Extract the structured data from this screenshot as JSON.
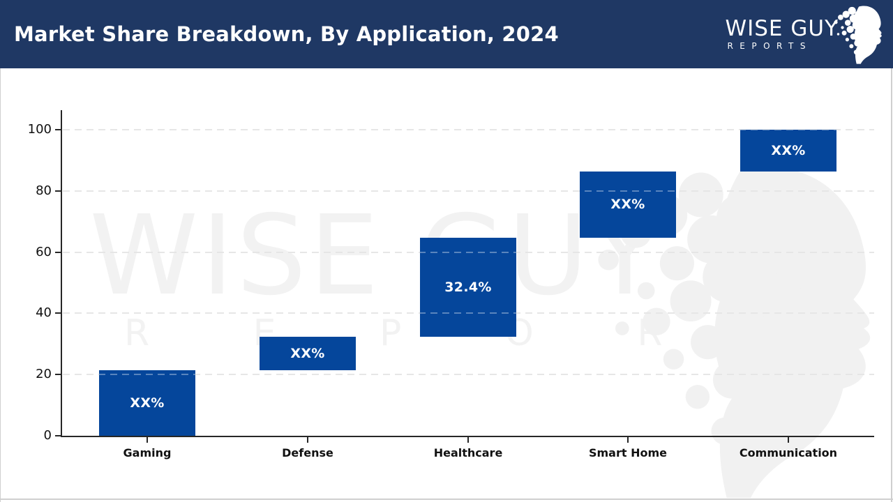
{
  "header": {
    "title": "Market Share Breakdown, By Application, 2024",
    "bg_color": "#1f3864",
    "logo": {
      "line1": "WISE GUY",
      "line2": "REPORTS"
    }
  },
  "watermark": {
    "line1": "WISE GUY",
    "line2": "REPORTS"
  },
  "chart_data": {
    "type": "bar",
    "variant": "floating-waterfall",
    "title": "Market Share Breakdown, By Application, 2024",
    "categories": [
      "Gaming",
      "Defense",
      "Healthcare",
      "Smart Home",
      "Communication"
    ],
    "bars": [
      {
        "category": "Gaming",
        "start": 0,
        "end": 21.5,
        "label": "XX%"
      },
      {
        "category": "Defense",
        "start": 21.5,
        "end": 32.4,
        "label": "XX%"
      },
      {
        "category": "Healthcare",
        "start": 32.4,
        "end": 64.8,
        "label": "32.4%"
      },
      {
        "category": "Smart Home",
        "start": 64.8,
        "end": 86.3,
        "label": "XX%"
      },
      {
        "category": "Communication",
        "start": 86.3,
        "end": 100,
        "label": "XX%"
      }
    ],
    "ylim": [
      0,
      100
    ],
    "yticks": [
      0,
      20,
      40,
      60,
      80,
      100
    ],
    "xlabel": "",
    "ylabel": "",
    "grid": "horizontal-dashed",
    "legend": "none",
    "bar_color": "#05469b",
    "bar_label_color": "#ffffff",
    "gridline_color": "#d9d9d9"
  }
}
